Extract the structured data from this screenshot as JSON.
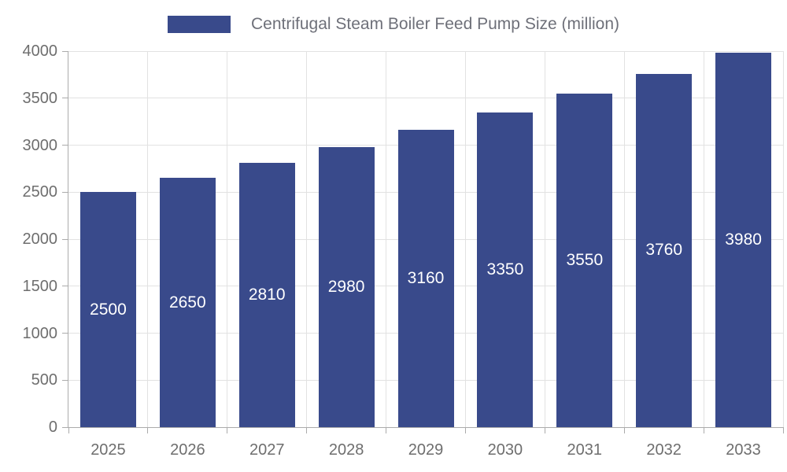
{
  "legend": {
    "label": "Centrifugal Steam Boiler Feed Pump Size (million)"
  },
  "chart_data": {
    "type": "bar",
    "title": "Centrifugal Steam Boiler Feed Pump Size (million)",
    "series_name": "Centrifugal Steam Boiler Feed Pump Size (million)",
    "categories": [
      "2025",
      "2026",
      "2027",
      "2028",
      "2029",
      "2030",
      "2031",
      "2032",
      "2033"
    ],
    "values": [
      2500,
      2650,
      2810,
      2980,
      3160,
      3350,
      3550,
      3760,
      3980
    ],
    "data_labels": [
      "2500",
      "2650",
      "2810",
      "2980",
      "3160",
      "3350",
      "3550",
      "3760",
      "3980"
    ],
    "xlabel": "",
    "ylabel": "",
    "ylim": [
      0,
      4000
    ],
    "y_ticks": [
      0,
      500,
      1000,
      1500,
      2000,
      2500,
      3000,
      3500,
      4000
    ],
    "grid": true,
    "legend_position": "top",
    "data_label_position": "inside-middle"
  },
  "colors": {
    "bar": "#394A8B",
    "grid": "#E2E2E2",
    "axis": "#ABABAB",
    "tick_text": "#6E6E6E",
    "legend_text": "#6E7079",
    "bar_label_text": "#FFFFFF",
    "background": "#FFFFFF"
  }
}
